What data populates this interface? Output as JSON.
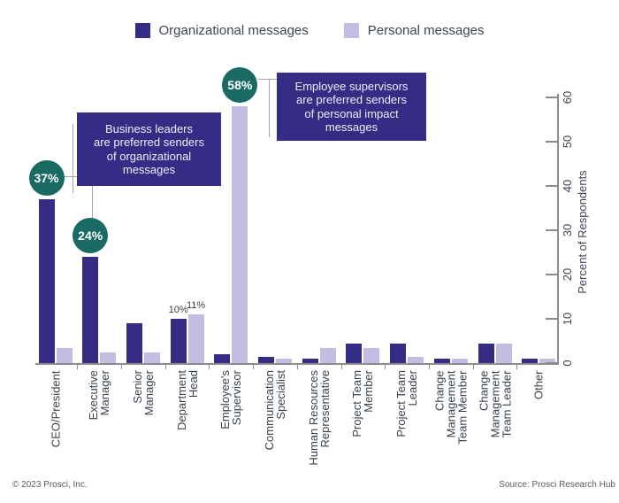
{
  "legend": {
    "items": [
      {
        "label": "Organizational messages",
        "color": "#342c85"
      },
      {
        "label": "Personal messages",
        "color": "#c4bde1"
      }
    ]
  },
  "chart_data": {
    "type": "bar",
    "title": "",
    "ylabel": "Percent of Respondents",
    "ylim": [
      0,
      60
    ],
    "yticks": [
      0,
      10,
      20,
      30,
      40,
      50,
      60
    ],
    "grid": false,
    "legend_position": "top-center",
    "categories": [
      "CEO/President",
      "Executive Manager",
      "Senior Manager",
      "Department Head",
      "Employee's Supervisor",
      "Communication Specialist",
      "Human Resources Representative",
      "Project Team Member",
      "Project Team Leader",
      "Change Management Team Member",
      "Change Management Team Leader",
      "Other"
    ],
    "category_lines": [
      [
        "CEO/President"
      ],
      [
        "Executive",
        "Manager"
      ],
      [
        "Senior",
        "Manager"
      ],
      [
        "Department",
        "Head"
      ],
      [
        "Employee's",
        "Supervisor"
      ],
      [
        "Communication",
        "Specialist"
      ],
      [
        "Human Resources",
        "Representative"
      ],
      [
        "Project Team",
        "Member"
      ],
      [
        "Project Team",
        "Leader"
      ],
      [
        "Change",
        "Management",
        "Team Member"
      ],
      [
        "Change",
        "Management",
        "Team Leader"
      ],
      [
        "Other"
      ]
    ],
    "series": [
      {
        "name": "Organizational messages",
        "color": "#342c85",
        "values": [
          37,
          24,
          9,
          10,
          2,
          1.5,
          1,
          4.5,
          4.5,
          1,
          4.5,
          1
        ]
      },
      {
        "name": "Personal messages",
        "color": "#c4bde1",
        "values": [
          3.5,
          2.5,
          2.5,
          11,
          58,
          1,
          3.5,
          3.5,
          1.5,
          1,
          4.5,
          1
        ]
      }
    ],
    "point_labels": [
      {
        "series": 0,
        "category": 3,
        "text": "10%"
      },
      {
        "series": 1,
        "category": 3,
        "text": "11%"
      }
    ],
    "badges": [
      {
        "series": 0,
        "category": 0,
        "text": "37%"
      },
      {
        "series": 0,
        "category": 1,
        "text": "24%"
      },
      {
        "series": 1,
        "category": 4,
        "text": "58%"
      }
    ]
  },
  "callouts": [
    {
      "text_lines": [
        "Business leaders",
        "are preferred senders",
        "of organizational",
        "messages"
      ]
    },
    {
      "text_lines": [
        "Employee supervisors",
        "are preferred senders",
        "of personal impact",
        "messages"
      ]
    }
  ],
  "footer": {
    "left": "© 2023 Prosci, Inc.",
    "right": "Source: Prosci Research Hub"
  },
  "colors": {
    "organizational": "#342c85",
    "personal": "#c4bde1",
    "badge": "#186a62",
    "callout_bg": "#342c85",
    "axis": "#8c8c8c",
    "label_text": "#39434e"
  }
}
